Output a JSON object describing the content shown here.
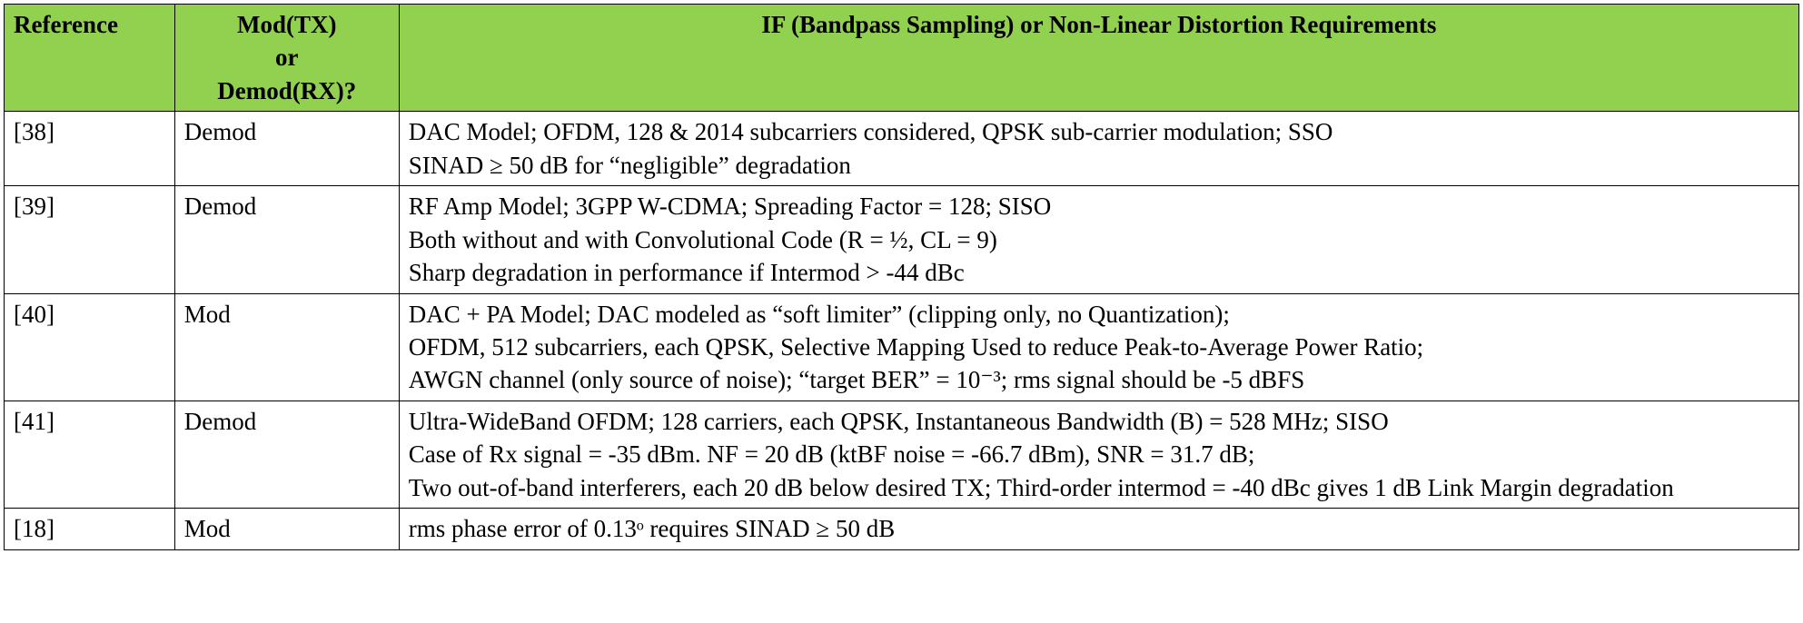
{
  "table": {
    "header_bg": "#92d050",
    "border_color": "#000000",
    "font_family": "Times New Roman",
    "cell_fontsize": 27,
    "columns": [
      {
        "key": "ref",
        "label": "Reference",
        "width_pct": 9.5,
        "align": "left"
      },
      {
        "key": "mod",
        "label": "Mod(TX)\nor\nDemod(RX)?",
        "width_pct": 12.5,
        "align": "center"
      },
      {
        "key": "req",
        "label": "IF (Bandpass Sampling) or Non-Linear Distortion Requirements",
        "width_pct": 78,
        "align": "center"
      }
    ],
    "rows": [
      {
        "ref": "[38]",
        "mod": "Demod",
        "req": "DAC Model; OFDM, 128 & 2014 subcarriers considered, QPSK sub-carrier modulation; SSO\nSINAD ≥ 50 dB for “negligible” degradation"
      },
      {
        "ref": "[39]",
        "mod": "Demod",
        "req": "RF Amp Model; 3GPP W-CDMA; Spreading Factor = 128;  SISO\nBoth without and with Convolutional Code (R = ½, CL = 9)\nSharp degradation in performance if Intermod > -44 dBc"
      },
      {
        "ref": "[40]",
        "mod": "Mod",
        "req": "DAC + PA Model; DAC modeled as “soft limiter” (clipping only, no Quantization);\nOFDM, 512 subcarriers, each QPSK, Selective Mapping Used to reduce Peak-to-Average Power Ratio;\nAWGN channel (only source of noise); “target BER” = 10⁻³; rms signal should be -5 dBFS"
      },
      {
        "ref": "[41]",
        "mod": "Demod",
        "req": "Ultra-WideBand OFDM; 128 carriers, each QPSK,  Instantaneous Bandwidth (B) = 528 MHz; SISO\nCase of Rx signal = -35 dBm. NF = 20 dB (ktBF noise = -66.7 dBm), SNR = 31.7 dB;\nTwo out-of-band interferers, each 20 dB below desired TX;  Third-order intermod = -40 dBc  gives 1 dB Link Margin degradation"
      },
      {
        "ref": "[18]",
        "mod": "Mod",
        "req": "rms phase error of 0.13ᵒ requires SINAD ≥ 50 dB"
      }
    ]
  }
}
